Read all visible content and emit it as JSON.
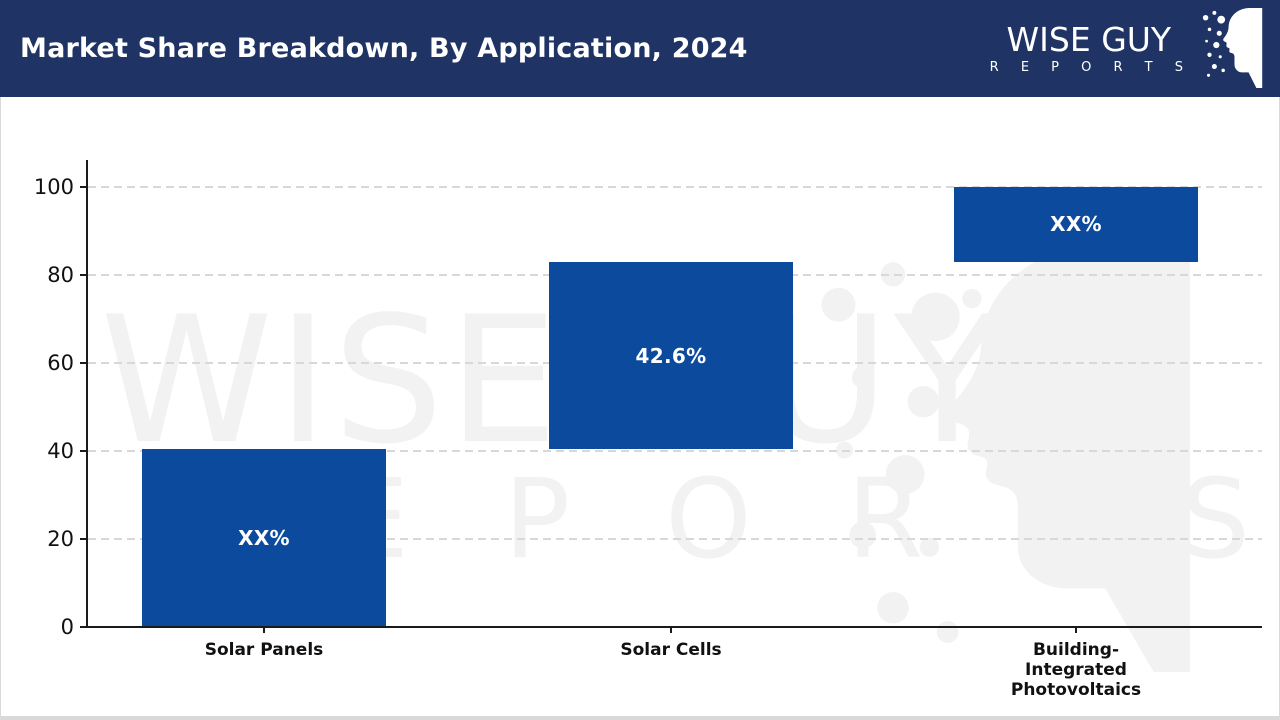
{
  "header": {
    "title": "Market Share Breakdown, By Application, 2024",
    "logo_line1": "WISE GUY",
    "logo_line2": "R E P O R T S"
  },
  "watermark": {
    "line1": "WISE GUY",
    "line2": "R E P O R T S"
  },
  "colors": {
    "header_bg": "#1f3465",
    "bar": "#0c4a9e",
    "grid": "#d8d8d8",
    "axis": "#1a1a1a",
    "watermark": "#f2f2f2",
    "footer_strip": "#d9d9d9",
    "bar_label_text": "#ffffff",
    "title_text": "#ffffff"
  },
  "chart_data": {
    "type": "bar",
    "subtype": "floating stacked segments (each category's segment starts where the previous ends)",
    "title": "Market Share Breakdown, By Application, 2024",
    "categories": [
      "Solar Panels",
      "Solar Cells",
      "Building-Integrated Photovoltaics"
    ],
    "tick_display": [
      "Solar Panels",
      "Solar Cells",
      "Building-\nIntegrated\nPhotovoltaics"
    ],
    "series": [
      {
        "name": "Solar Panels",
        "start": 0,
        "end": 40.4,
        "value_label": "XX%"
      },
      {
        "name": "Solar Cells",
        "start": 40.4,
        "end": 83.0,
        "value": 42.6,
        "value_label": "42.6%"
      },
      {
        "name": "Building-Integrated Photovoltaics",
        "start": 83.0,
        "end": 100,
        "value_label": "XX%"
      }
    ],
    "xlabel": "",
    "ylabel": "",
    "yticks": [
      0,
      20,
      40,
      60,
      80,
      100
    ],
    "ylim": [
      0,
      106
    ],
    "grid": "horizontal dashed",
    "legend": "none"
  }
}
